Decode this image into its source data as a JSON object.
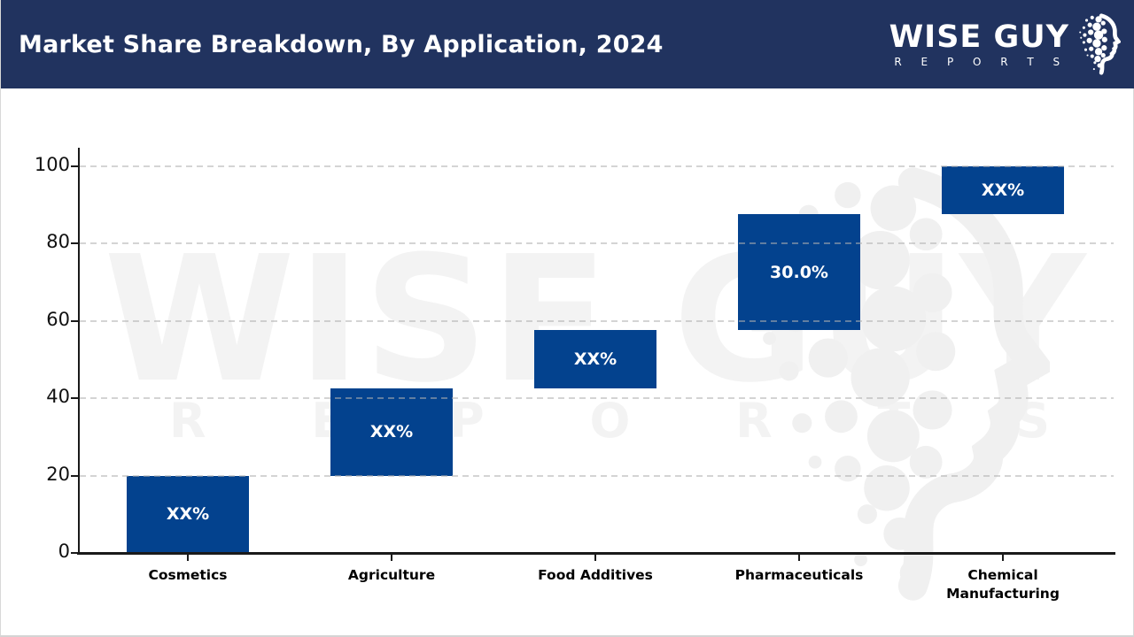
{
  "header": {
    "title": "Market Share Breakdown, By Application, 2024"
  },
  "logo": {
    "name": "WISE GUY",
    "subtitle": "R E P O R T S"
  },
  "watermark": {
    "line1": "WISE GUY",
    "line2": "R E P O R T S"
  },
  "chart_data": {
    "type": "bar",
    "subtype": "waterfall",
    "title": "Market Share Breakdown, By Application, 2024",
    "categories": [
      "Cosmetics",
      "Agriculture",
      "Food Additives",
      "Pharmaceuticals",
      "Chemical Manufacturing"
    ],
    "tick_labels": [
      "Cosmetics",
      "Agriculture",
      "Food Additives",
      "Pharmaceuticals",
      "Chemical\nManufacturing"
    ],
    "segments": [
      {
        "category": "Cosmetics",
        "start": 0,
        "end": 20,
        "label": "XX%"
      },
      {
        "category": "Agriculture",
        "start": 20,
        "end": 42.5,
        "label": "XX%"
      },
      {
        "category": "Food Additives",
        "start": 42.5,
        "end": 57.5,
        "label": "XX%"
      },
      {
        "category": "Pharmaceuticals",
        "start": 57.5,
        "end": 87.5,
        "label": "30.0%"
      },
      {
        "category": "Chemical Manufacturing",
        "start": 87.5,
        "end": 100,
        "label": "XX%"
      }
    ],
    "yticks": [
      0,
      20,
      40,
      60,
      80,
      100
    ],
    "ylim": [
      0,
      104
    ],
    "grid": "horizontal-dashed",
    "legend": "none",
    "bar_color": "#03428e",
    "header_color": "#21335f",
    "label_color": "#ffffff"
  }
}
